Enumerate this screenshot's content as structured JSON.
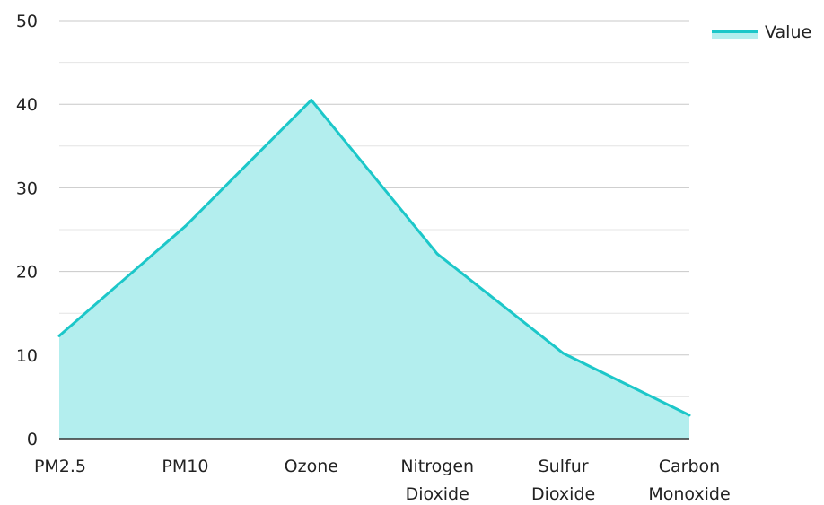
{
  "chart_data": {
    "type": "area",
    "categories": [
      [
        "PM2.5"
      ],
      [
        "PM10"
      ],
      [
        "Ozone"
      ],
      [
        "Nitrogen",
        "Dioxide"
      ],
      [
        "Sulfur",
        "Dioxide"
      ],
      [
        "Carbon",
        "Monoxide"
      ]
    ],
    "series": [
      {
        "name": "Value",
        "values": [
          12.3,
          25.4,
          40.5,
          22.1,
          10.2,
          2.8
        ]
      }
    ],
    "ylim": [
      0,
      50
    ],
    "yticks": [
      0,
      10,
      20,
      30,
      40,
      50
    ],
    "grid": true,
    "legend_position": "top-right",
    "colors": {
      "line": "#1cc7c9",
      "fill": "#b3eeee",
      "grid": "#c8c8c8",
      "minor_grid": "#e4e4e4",
      "axis": "#333333"
    }
  }
}
